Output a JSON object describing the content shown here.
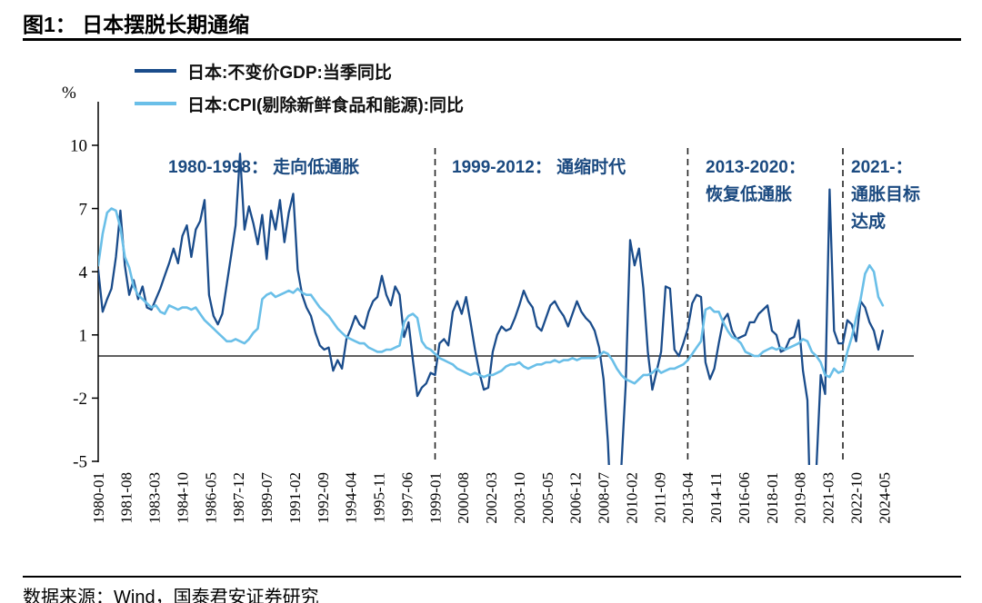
{
  "page": {
    "title": "图1： 日本摆脱长期通缩",
    "source": "数据来源：Wind，国泰君安证券研究"
  },
  "chart_data": {
    "type": "line",
    "title": "日本摆脱长期通缩",
    "ylabel": "%",
    "grid": false,
    "legend_position": "top-left",
    "y_ticks": [
      10,
      7,
      4,
      1,
      -2,
      -5
    ],
    "ylim": [
      -5,
      10
    ],
    "xlim": [
      "1980-01",
      "2024-05"
    ],
    "x_start": 1980.0,
    "x_step_years": 0.25,
    "x_tick_labels": [
      "1980-01",
      "1981-08",
      "1983-03",
      "1984-10",
      "1986-05",
      "1987-12",
      "1989-07",
      "1991-02",
      "1992-09",
      "1994-04",
      "1995-11",
      "1997-06",
      "1999-01",
      "2000-08",
      "2002-03",
      "2003-10",
      "2005-05",
      "2006-12",
      "2008-07",
      "2010-02",
      "2011-09",
      "2013-04",
      "2014-11",
      "2016-06",
      "2018-01",
      "2019-08",
      "2021-03",
      "2022-10",
      "2024-05"
    ],
    "dashed_separators_x": [
      "1999-01",
      "2013-04",
      "2022-01"
    ],
    "annotations": [
      {
        "text": "1980-1998： 走向低通胀"
      },
      {
        "text": "1999-2012： 通缩时代"
      },
      {
        "text": "2013-2020：恢复低通胀"
      },
      {
        "text": "2021-：通胀目标达成"
      }
    ],
    "series": [
      {
        "name": "日本:不变价GDP:当季同比",
        "color": "#1a4c8b",
        "values": [
          4.1,
          2.1,
          2.7,
          3.2,
          4.7,
          6.9,
          4.3,
          2.9,
          3.6,
          2.7,
          3.3,
          2.3,
          2.2,
          2.7,
          3.2,
          3.8,
          4.4,
          5.1,
          4.4,
          5.7,
          6.2,
          4.7,
          6.0,
          6.4,
          7.4,
          2.9,
          1.9,
          1.5,
          2.0,
          3.4,
          4.8,
          6.2,
          9.6,
          6.0,
          7.1,
          6.3,
          5.3,
          6.7,
          4.6,
          6.9,
          6.0,
          7.4,
          5.4,
          6.8,
          7.7,
          4.1,
          2.9,
          2.3,
          1.9,
          1.1,
          0.5,
          0.3,
          0.4,
          -0.7,
          -0.2,
          -0.6,
          0.8,
          1.3,
          1.9,
          1.5,
          1.3,
          2.1,
          2.6,
          2.8,
          3.8,
          2.9,
          2.4,
          3.3,
          2.9,
          0.9,
          1.6,
          -0.2,
          -1.9,
          -1.5,
          -1.3,
          -0.8,
          -0.9,
          0.6,
          0.8,
          0.5,
          2.1,
          2.6,
          2.0,
          2.8,
          1.6,
          0.3,
          -0.8,
          -1.6,
          -1.5,
          0.2,
          1.0,
          1.4,
          1.2,
          1.3,
          1.8,
          2.4,
          3.1,
          2.6,
          2.3,
          1.4,
          1.2,
          1.8,
          2.4,
          2.6,
          2.2,
          1.9,
          1.4,
          2.0,
          2.6,
          2.1,
          1.8,
          1.6,
          1.2,
          0.4,
          -1.1,
          -4.1,
          -8.8,
          -6.0,
          -5.3,
          -1.4,
          5.5,
          4.3,
          5.1,
          3.2,
          0.2,
          -1.6,
          -0.7,
          0.2,
          3.3,
          3.2,
          0.3,
          0.0,
          0.6,
          1.3,
          2.5,
          2.9,
          2.8,
          -0.3,
          -1.1,
          -0.6,
          0.6,
          1.7,
          2.0,
          1.2,
          0.8,
          0.9,
          1.0,
          1.6,
          1.6,
          2.0,
          2.2,
          2.4,
          1.2,
          1.0,
          0.2,
          0.3,
          0.8,
          0.9,
          1.7,
          -0.7,
          -2.1,
          -10.1,
          -5.4,
          -0.9,
          -1.8,
          7.9,
          1.2,
          0.6,
          0.6,
          1.7,
          1.5,
          0.7,
          2.6,
          2.3,
          1.6,
          1.2,
          0.3,
          1.2
        ]
      },
      {
        "name": "日本:CPI(剔除新鲜食品和能源):同比",
        "color": "#6abfe8",
        "values": [
          4.3,
          5.8,
          6.8,
          7.0,
          6.9,
          6.1,
          4.7,
          4.2,
          3.3,
          2.9,
          2.7,
          2.5,
          2.3,
          2.4,
          2.1,
          2.0,
          2.4,
          2.3,
          2.2,
          2.3,
          2.3,
          2.2,
          2.3,
          2.0,
          1.7,
          1.5,
          1.3,
          1.1,
          0.9,
          0.7,
          0.7,
          0.8,
          0.7,
          0.6,
          0.8,
          1.1,
          1.3,
          2.7,
          2.9,
          3.0,
          2.8,
          2.9,
          3.0,
          3.1,
          3.0,
          3.2,
          3.0,
          2.9,
          2.9,
          2.6,
          2.3,
          2.1,
          1.9,
          1.6,
          1.3,
          1.1,
          0.9,
          0.8,
          0.7,
          0.6,
          0.6,
          0.4,
          0.3,
          0.2,
          0.2,
          0.3,
          0.3,
          0.4,
          0.5,
          1.6,
          1.9,
          2.0,
          1.8,
          0.7,
          0.4,
          0.3,
          0.1,
          -0.1,
          -0.2,
          -0.3,
          -0.4,
          -0.6,
          -0.7,
          -0.8,
          -0.9,
          -0.8,
          -0.9,
          -1.0,
          -0.9,
          -0.9,
          -0.8,
          -0.7,
          -0.5,
          -0.4,
          -0.4,
          -0.3,
          -0.5,
          -0.6,
          -0.5,
          -0.4,
          -0.4,
          -0.3,
          -0.3,
          -0.2,
          -0.3,
          -0.2,
          -0.2,
          -0.1,
          -0.2,
          -0.1,
          -0.1,
          -0.1,
          -0.1,
          0.0,
          0.2,
          0.1,
          -0.2,
          -0.6,
          -0.9,
          -1.1,
          -1.2,
          -1.3,
          -1.1,
          -0.9,
          -0.9,
          -0.8,
          -0.6,
          -0.8,
          -0.7,
          -0.6,
          -0.6,
          -0.5,
          -0.4,
          -0.2,
          0.1,
          0.4,
          0.7,
          2.2,
          2.3,
          2.1,
          2.1,
          1.6,
          1.2,
          0.9,
          0.8,
          0.6,
          0.2,
          0.1,
          0.0,
          0.0,
          0.2,
          0.3,
          0.4,
          0.3,
          0.4,
          0.3,
          0.4,
          0.5,
          0.6,
          0.8,
          0.7,
          0.2,
          0.0,
          -0.3,
          -0.9,
          -1.0,
          -0.6,
          -0.8,
          -0.7,
          0.2,
          0.9,
          1.8,
          2.7,
          3.9,
          4.3,
          4.0,
          2.8,
          2.4
        ]
      }
    ]
  }
}
